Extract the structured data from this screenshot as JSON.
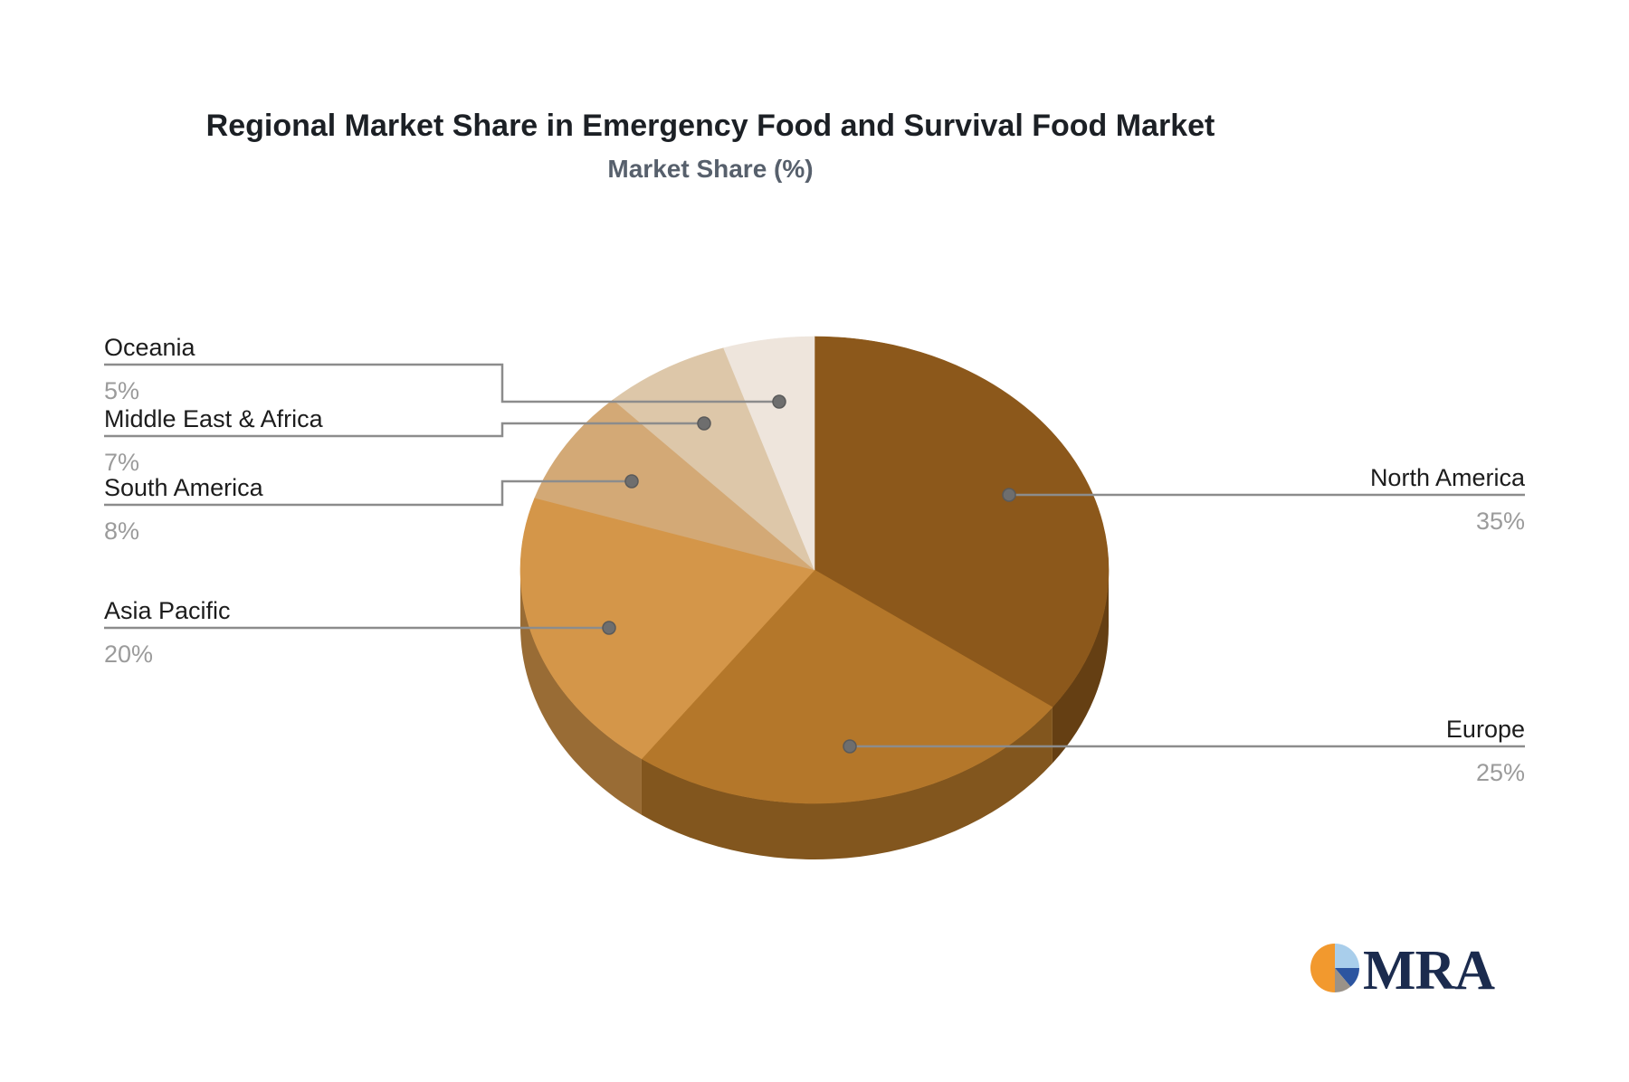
{
  "header": {
    "title": "Regional Market Share in Emergency Food and Survival Food Market",
    "subtitle": "Market Share (%)"
  },
  "chart_data": {
    "type": "pie",
    "title": "Regional Market Share in Emergency Food and Survival Food Market",
    "subtitle": "Market Share (%)",
    "unit": "%",
    "effect": "3d",
    "start_angle_deg": 0,
    "direction": "clockwise",
    "legend_position": "none",
    "slices": [
      {
        "label": "North America",
        "value": 35,
        "display": "35%",
        "color": "#8C581B"
      },
      {
        "label": "Europe",
        "value": 25,
        "display": "25%",
        "color": "#B4772A"
      },
      {
        "label": "Asia Pacific",
        "value": 20,
        "display": "20%",
        "color": "#D49649"
      },
      {
        "label": "South America",
        "value": 8,
        "display": "8%",
        "color": "#D3A976"
      },
      {
        "label": "Middle East & Africa",
        "value": 7,
        "display": "7%",
        "color": "#DDC7A9"
      },
      {
        "label": "Oceania",
        "value": 5,
        "display": "5%",
        "color": "#EEE5DC"
      }
    ],
    "label_color": "#1c1c1c",
    "percent_color": "#9b9b9b",
    "connector_color": "#8c8c8c"
  },
  "logo": {
    "text": "MRA",
    "icon": "pie-chart-icon",
    "text_color": "#1B2B4E",
    "icon_colors": [
      "#F2992E",
      "#A9CEEB",
      "#2C55A0",
      "#9A9288"
    ]
  }
}
